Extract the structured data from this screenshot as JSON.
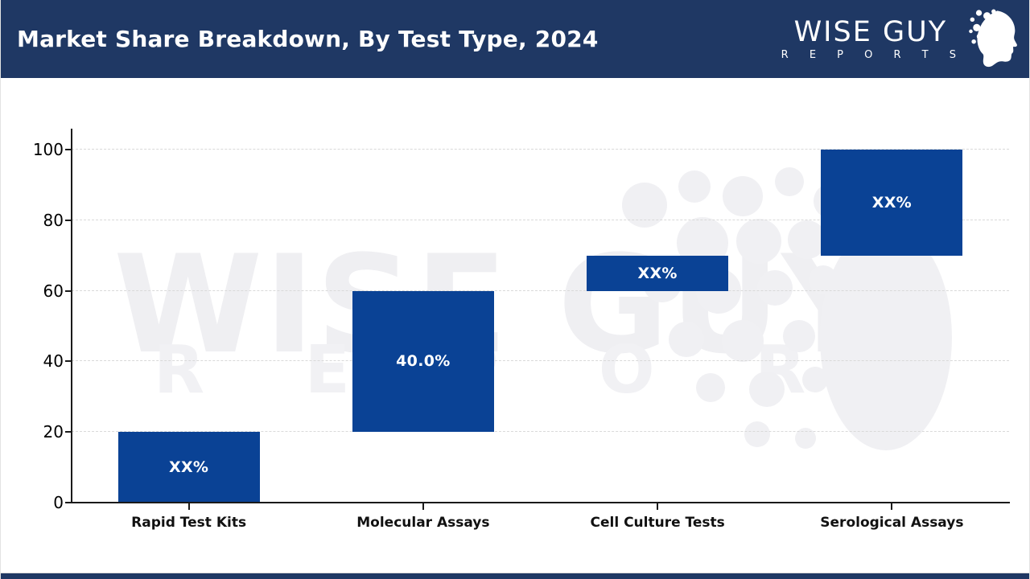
{
  "header": {
    "title": "Market Share Breakdown, By Test Type, 2024",
    "bg_color": "#1f3864",
    "logo": {
      "line1": "WISE GUY",
      "line2": "R E P O R T S"
    }
  },
  "watermark": {
    "line1": "WISE GUY",
    "line2": "R E P O R T S"
  },
  "footer": {
    "bg_color": "#1f3864"
  },
  "chart_data": {
    "type": "bar",
    "subtype": "waterfall",
    "title": "Market Share Breakdown, By Test Type, 2024",
    "categories": [
      "Rapid Test Kits",
      "Molecular Assays",
      "Cell Culture Tests",
      "Serological Assays"
    ],
    "segments": [
      {
        "category": "Rapid Test Kits",
        "start": 0,
        "end": 20,
        "label": "XX%"
      },
      {
        "category": "Molecular Assays",
        "start": 20,
        "end": 60,
        "label": "40.0%"
      },
      {
        "category": "Cell Culture Tests",
        "start": 60,
        "end": 70,
        "label": "XX%"
      },
      {
        "category": "Serological Assays",
        "start": 70,
        "end": 100,
        "label": "XX%"
      }
    ],
    "ylim": [
      0,
      100
    ],
    "yticks": [
      0,
      20,
      40,
      60,
      80,
      100
    ],
    "grid": "horizontal-dashed",
    "bar_color": "#0a4295",
    "bar_label_color": "#ffffff",
    "axis_color": "#1a1a1a",
    "gridline_color": "#d9d9d9"
  }
}
